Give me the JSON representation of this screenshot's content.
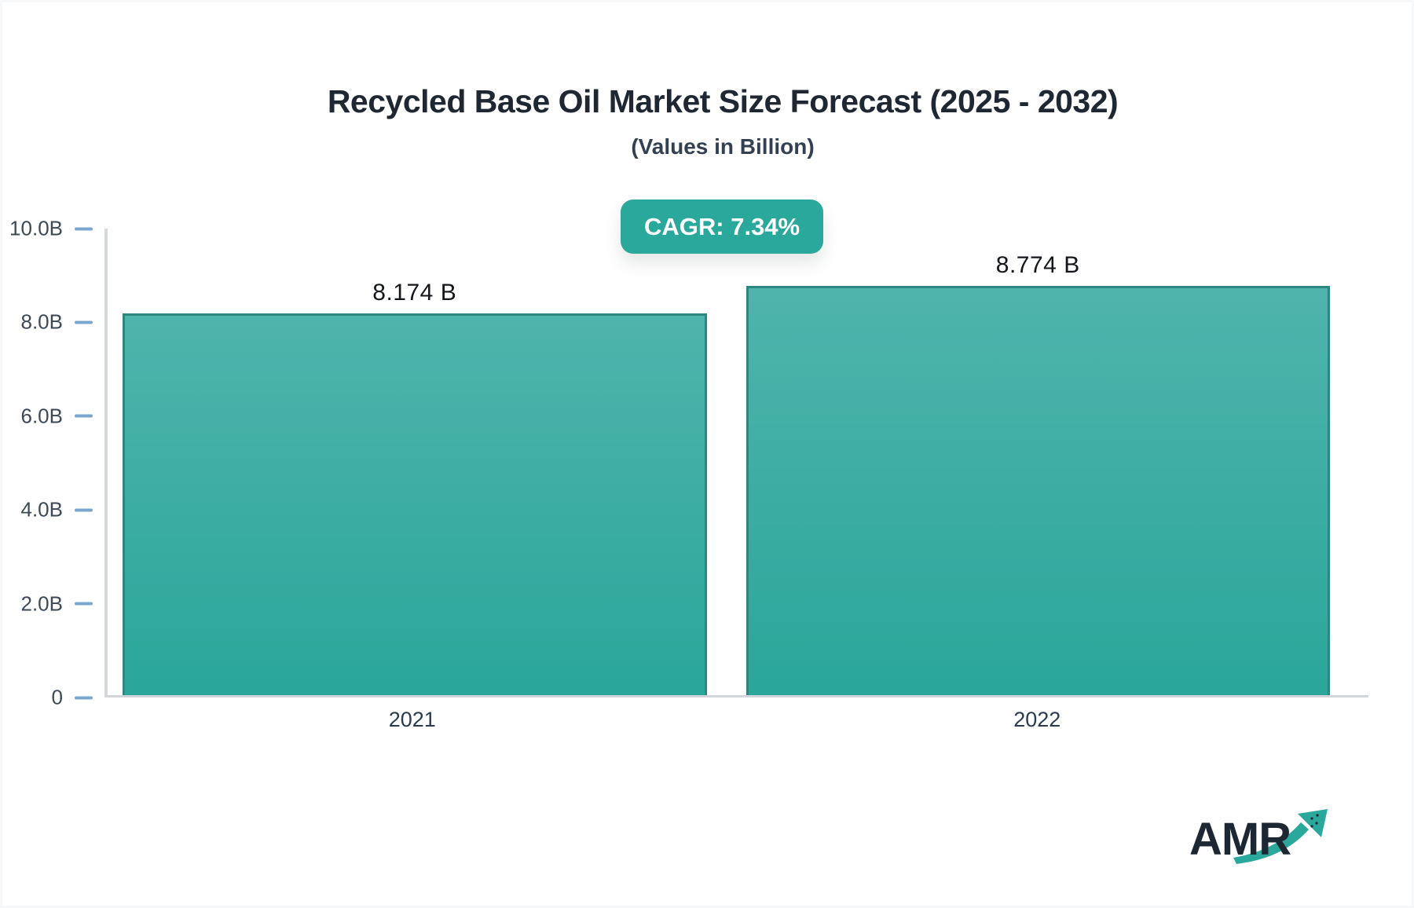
{
  "header": {
    "title": "Recycled Base Oil Market Size Forecast (2025 - 2032)",
    "subtitle": "(Values in Billion)"
  },
  "badge": {
    "label": "CAGR: 7.34%",
    "color": "#2BA89C"
  },
  "chart_data": {
    "type": "bar",
    "title": "Recycled Base Oil Market Size Forecast (2025 - 2032)",
    "subtitle": "(Values in Billion)",
    "categories": [
      "2021",
      "2022"
    ],
    "values": [
      8.174,
      8.774
    ],
    "value_labels": [
      "8.174 B",
      "8.774 B"
    ],
    "annotation": "CAGR: 7.34%",
    "xlabel": "",
    "ylabel": "",
    "ylim": [
      0,
      10
    ],
    "ytick_labels": [
      "10.0B",
      "8.0B",
      "6.0B",
      "4.0B",
      "2.0B",
      "0"
    ],
    "ytick_values": [
      10,
      8,
      6,
      4,
      2,
      0
    ],
    "grid": false,
    "legend": "none",
    "colors": {
      "bar_fill_top": "#4FB4AC",
      "bar_fill_bottom": "#2AA69A",
      "bar_border": "#2E877F",
      "axis_line": "#D5D8DD",
      "tick_dash": "#7BA7CF",
      "badge_background": "#2BA89C",
      "title_text": "#1F2733"
    }
  },
  "logo": {
    "text": "AMR",
    "arrow_color": "#2BA89C",
    "text_color": "#1C2733"
  }
}
